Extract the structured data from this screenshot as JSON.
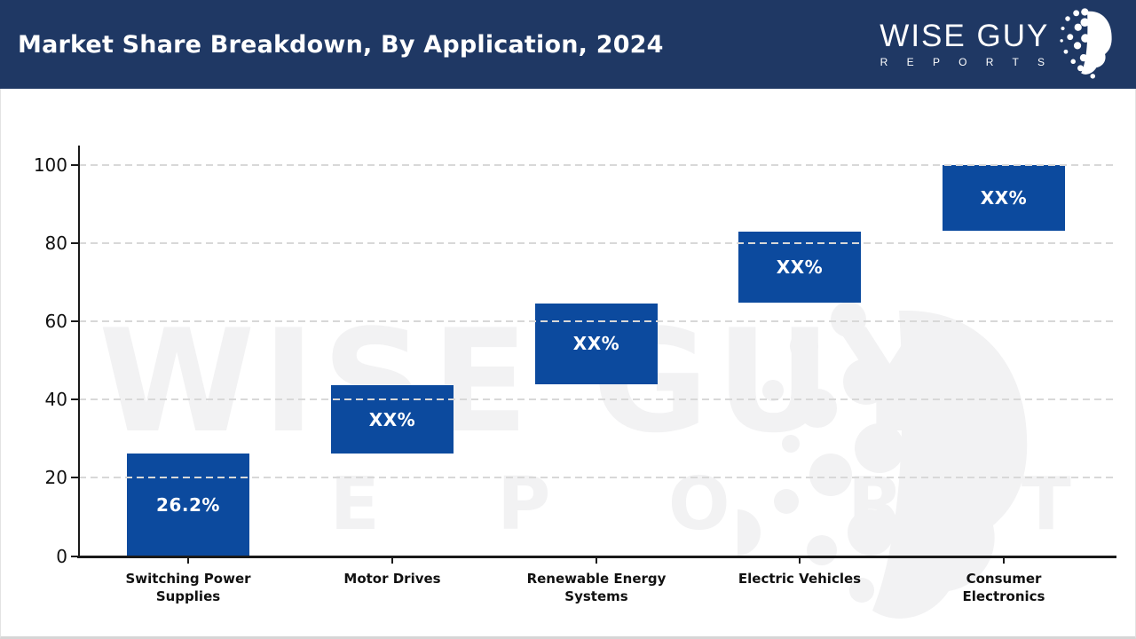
{
  "header": {
    "title": "Market Share Breakdown, By Application, 2024",
    "bg_color": "#1f3864",
    "logo": {
      "wordmark": "WISE GUY",
      "subtitle": "R E P O R T S"
    }
  },
  "watermark": {
    "line1": "WISE GUY",
    "line2": "R E P O R T S"
  },
  "chart_data": {
    "type": "bar",
    "subtype": "floating-waterfall",
    "title": "Market Share Breakdown, By Application, 2024",
    "categories": [
      "Switching Power Supplies",
      "Motor Drives",
      "Renewable Energy Systems",
      "Electric Vehicles",
      "Consumer Electronics"
    ],
    "categories_lines": [
      [
        "Switching Power",
        "Supplies"
      ],
      [
        "Motor Drives"
      ],
      [
        "Renewable Energy",
        "Systems"
      ],
      [
        "Electric Vehicles"
      ],
      [
        "Consumer",
        "Electronics"
      ]
    ],
    "segments": [
      {
        "category": "Switching Power Supplies",
        "start": 0,
        "end": 26.2,
        "label": "26.2%"
      },
      {
        "category": "Motor Drives",
        "start": 26.2,
        "end": 43.7,
        "label": "XX%"
      },
      {
        "category": "Renewable Energy Systems",
        "start": 44.0,
        "end": 64.6,
        "label": "XX%"
      },
      {
        "category": "Electric Vehicles",
        "start": 64.9,
        "end": 82.9,
        "label": "XX%"
      },
      {
        "category": "Consumer Electronics",
        "start": 83.1,
        "end": 100,
        "label": "XX%"
      }
    ],
    "yticks": [
      0,
      20,
      40,
      60,
      80,
      100
    ],
    "ylim": [
      0,
      105
    ],
    "xlabel": "",
    "ylabel": "",
    "legend": null,
    "grid": "horizontal-dashed",
    "bar_color": "#0c4a9e",
    "bar_label_color": "#ffffff",
    "axis_color": "#1a1a1a",
    "gridline_color": "#d8d8d8"
  }
}
